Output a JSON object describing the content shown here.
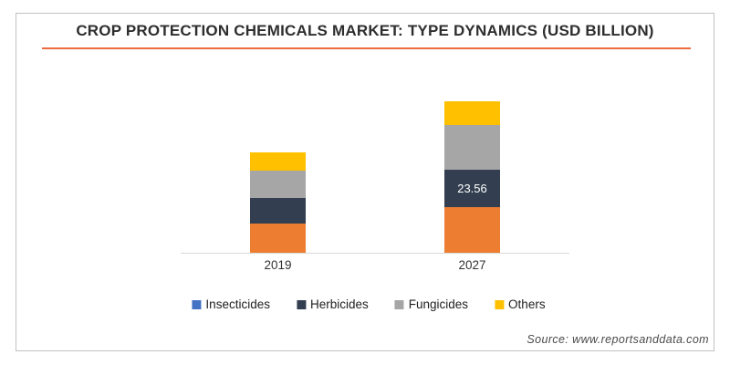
{
  "page": {
    "title": "CROP PROTECTION CHEMICALS MARKET: TYPE DYNAMICS (USD BILLION)",
    "source": "Source: www.reportsanddata.com",
    "colors": {
      "accent_underline": "#ED6A3D",
      "card_border": "#C1C1C1",
      "axis_line": "#D9D9D9",
      "title_text": "#2E2E2E",
      "data_label_text": "#FFFFFF"
    }
  },
  "chart_data": {
    "type": "bar",
    "stacked": true,
    "title": "CROP PROTECTION CHEMICALS MARKET: TYPE DYNAMICS (USD BILLION)",
    "unit": "USD Billion",
    "categories": [
      "2019",
      "2027"
    ],
    "series": [
      {
        "name": "Insecticides",
        "legend_color": "#4472C4",
        "bar_color": "#ED7D31",
        "values": [
          18.4,
          28.4
        ],
        "labels": [
          "",
          ""
        ]
      },
      {
        "name": "Herbicides",
        "legend_color": "#333F50",
        "bar_color": "#333F50",
        "values": [
          15.9,
          23.56
        ],
        "labels": [
          "",
          "23.56"
        ]
      },
      {
        "name": "Fungicides",
        "legend_color": "#A6A6A6",
        "bar_color": "#A6A6A6",
        "values": [
          17.0,
          27.8
        ],
        "labels": [
          "",
          ""
        ]
      },
      {
        "name": "Others",
        "legend_color": "#FFC000",
        "bar_color": "#FFC000",
        "values": [
          11.1,
          14.8
        ],
        "labels": [
          "",
          ""
        ]
      }
    ],
    "totals": [
      62.4,
      94.56
    ],
    "gridlines": false,
    "y_axis_visible": false,
    "legend_position": "bottom"
  }
}
